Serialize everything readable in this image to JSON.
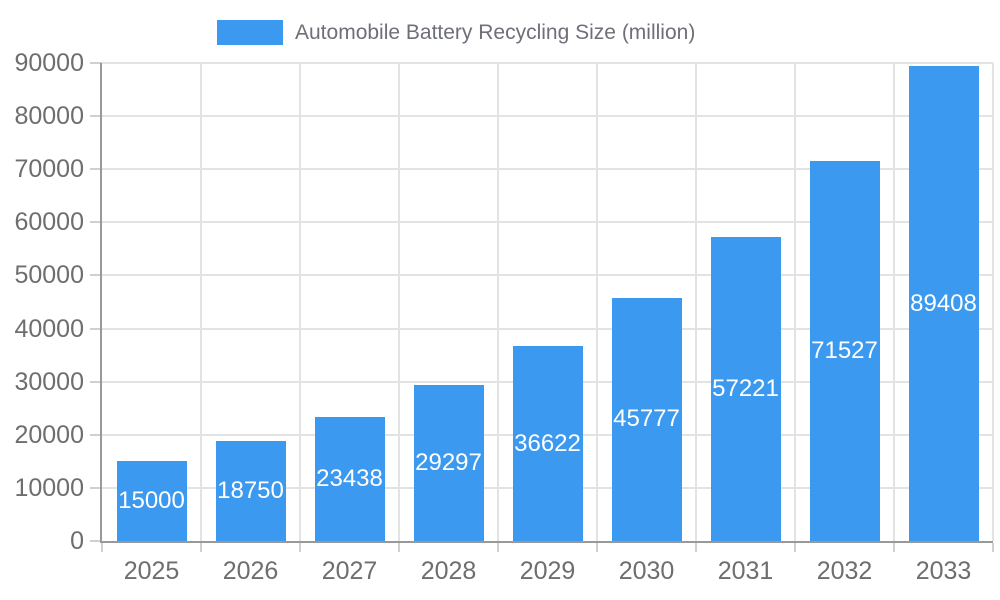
{
  "legend": {
    "label": "Automobile Battery Recycling Size (million)"
  },
  "chart_data": {
    "type": "bar",
    "title": "Automobile Battery Recycling Size (million)",
    "categories": [
      "2025",
      "2026",
      "2027",
      "2028",
      "2029",
      "2030",
      "2031",
      "2032",
      "2033"
    ],
    "values": [
      15000,
      18750,
      23438,
      29297,
      36622,
      45777,
      57221,
      71527,
      89408
    ],
    "xlabel": "",
    "ylabel": "",
    "ylim": [
      0,
      90000
    ],
    "yticks": [
      0,
      10000,
      20000,
      30000,
      40000,
      50000,
      60000,
      70000,
      80000,
      90000
    ],
    "grid": true,
    "legend_position": "top-center",
    "value_labels": "inside-center",
    "bar_color": "#3B99F0",
    "value_label_color": "#FFFFFF",
    "axis_line_color": "#999999",
    "gridline_color": "#E3E3E3",
    "tick_mark_color": "#D0D0D0",
    "tick_label_color": "#6E6E6E",
    "legend_text_color": "#6E7079",
    "background_color": "#FFFFFF"
  }
}
